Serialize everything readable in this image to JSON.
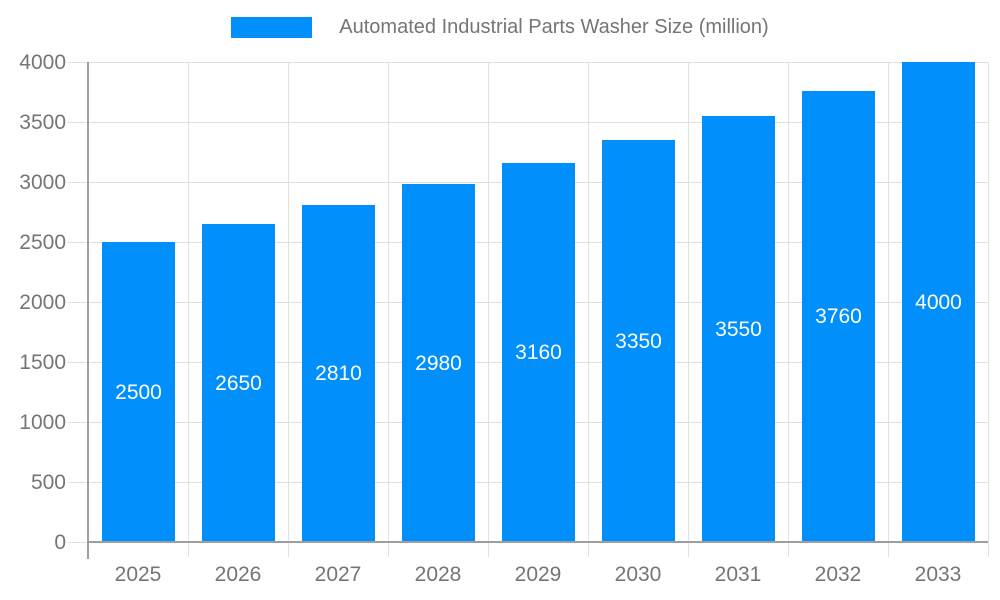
{
  "legend": {
    "label": "Automated Industrial Parts Washer Size (million)",
    "swatch_color": "#008FFB"
  },
  "chart_data": {
    "type": "bar",
    "title": "Automated Industrial Parts Washer Size (million)",
    "series_name": "Automated Industrial Parts Washer Size (million)",
    "categories": [
      "2025",
      "2026",
      "2027",
      "2028",
      "2029",
      "2030",
      "2031",
      "2032",
      "2033"
    ],
    "values": [
      2500,
      2650,
      2810,
      2980,
      3160,
      3350,
      3550,
      3760,
      4000
    ],
    "value_labels": [
      "2500",
      "2650",
      "2810",
      "2980",
      "3160",
      "3350",
      "3550",
      "3760",
      "4000"
    ],
    "xlabel": "",
    "ylabel": "",
    "ylim": [
      0,
      4000
    ],
    "ytick_step": 500,
    "ytick_labels": [
      "0",
      "500",
      "1000",
      "1500",
      "2000",
      "2500",
      "3000",
      "3500",
      "4000"
    ],
    "grid": true,
    "legend_position": "top-center",
    "colors": {
      "bar": "#008FFB",
      "value_label": "#ffffff",
      "axis_line": "#9e9e9e",
      "grid_line": "#e0e0e0",
      "tick_text": "#757575",
      "background": "#ffffff"
    }
  }
}
